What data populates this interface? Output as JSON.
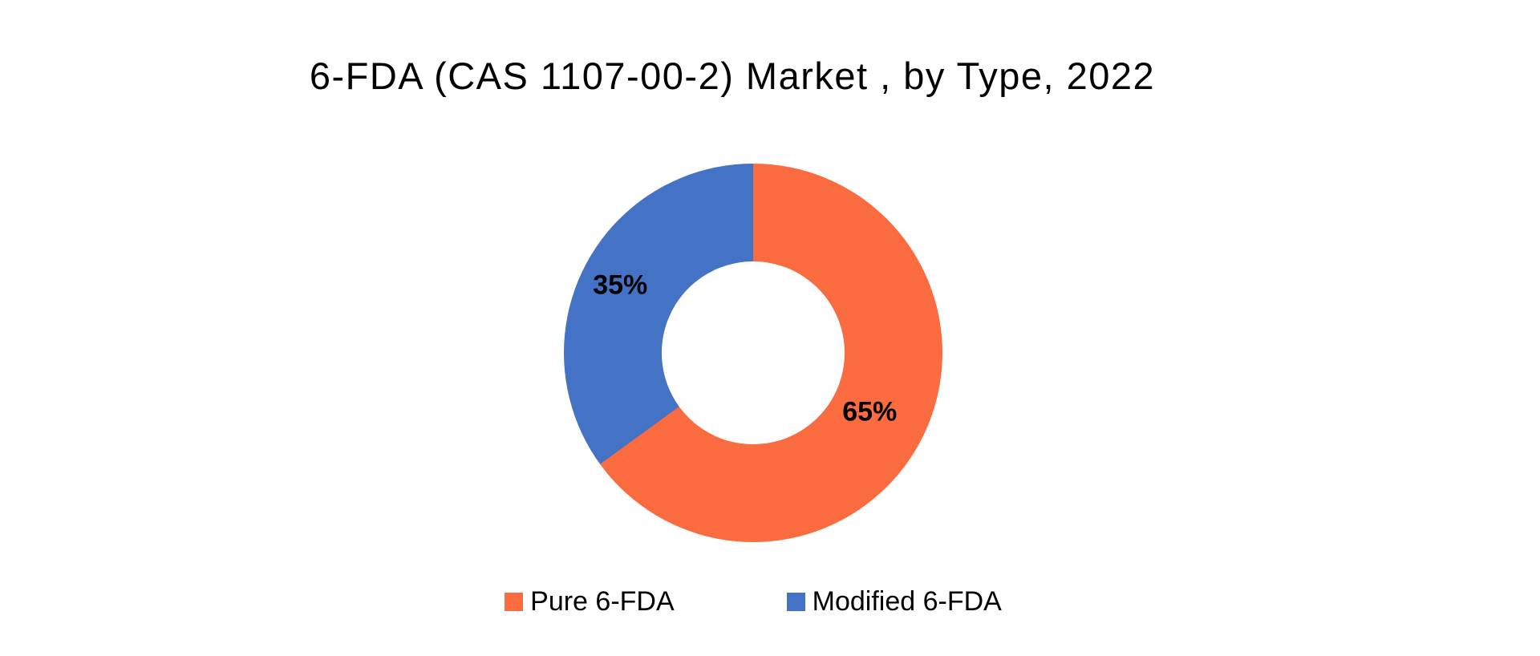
{
  "chart_data": {
    "type": "pie",
    "subtype": "donut",
    "title": "6-FDA (CAS 1107-00-2) Market , by Type, 2022",
    "categories": [
      "Pure 6-FDA",
      "Modified 6-FDA"
    ],
    "values": [
      65,
      35
    ],
    "slices": [
      {
        "label": "Pure 6-FDA",
        "value": 65,
        "data_label": "65%",
        "color": "#FA6B3F"
      },
      {
        "label": "Modified 6-FDA",
        "value": 35,
        "data_label": "35%",
        "color": "#4472C4"
      }
    ],
    "start_angle_deg": 0,
    "direction": "clockwise",
    "hole_ratio": 0.48,
    "legend_position": "bottom",
    "title_color": "#000000",
    "data_label_color": "#000000",
    "background_color": "#FFFFFF"
  }
}
